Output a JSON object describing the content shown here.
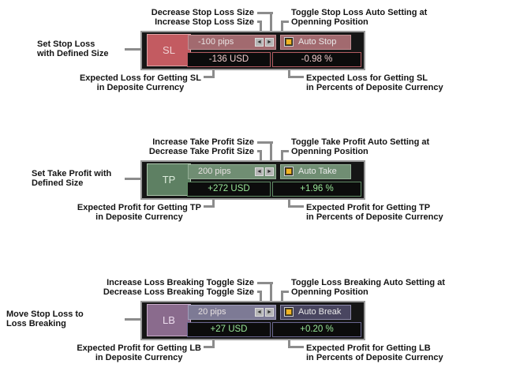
{
  "styles": {
    "connector_color": "#8c8c8c",
    "annotation_text_color": "#141414",
    "widget_background": "#161616",
    "widget_frame": "#9a9a9a",
    "checkbox_fill_color": "#f1b425",
    "arrow_button_color": "#b6b6b6",
    "icons": {
      "decrease_arrow": "◄",
      "increase_arrow": "►"
    }
  },
  "sections": [
    {
      "id": "SL",
      "accent_color": "#c35b61",
      "annotations": {
        "spinner_line1": "Decrease Stop Loss Size",
        "spinner_line2": "Increase Stop Loss Size",
        "toggle_line1": "Toggle Stop Loss Auto Setting at",
        "toggle_line2": "Openning Position",
        "left_line1": "Set Stop Loss",
        "left_line2": "with Defined Size",
        "bottom_left_line1": "Expected Loss for Getting SL",
        "bottom_left_line2": "in Deposite Currency",
        "bottom_right_line1": "Expected Loss for Getting SL",
        "bottom_right_line2": "in Percents of Deposite Currency"
      },
      "widget": {
        "button": "SL",
        "pips": "-100 pips",
        "auto_label": "Auto Stop",
        "auto_checked": true,
        "usd_value": "-136 USD",
        "percent_value": "-0.98 %"
      }
    },
    {
      "id": "TP",
      "accent_color": "#5e8063",
      "annotations": {
        "spinner_line1": "Increase Take Profit Size",
        "spinner_line2": "Decrease Take Profit Size",
        "toggle_line1": "Toggle Take Profit Auto Setting at",
        "toggle_line2": "Openning Position",
        "left_line1": "Set Take Profit with",
        "left_line2": "Defined Size",
        "bottom_left_line1": "Expected Profit for Getting TP",
        "bottom_left_line2": "in Deposite Currency",
        "bottom_right_line1": "Expected Profit for Getting TP",
        "bottom_right_line2": "in Percents of Deposite Currency"
      },
      "widget": {
        "button": "TP",
        "pips": "200 pips",
        "auto_label": "Auto Take",
        "auto_checked": true,
        "usd_value": "+272 USD",
        "percent_value": "+1.96 %"
      }
    },
    {
      "id": "LB",
      "accent_color": "#8a6b8d",
      "annotations": {
        "spinner_line1": "Increase Loss Breaking Toggle Size",
        "spinner_line2": "Decrease Loss Breaking Toggle Size",
        "toggle_line1": "Toggle Loss Breaking Auto Setting at",
        "toggle_line2": "Openning Position",
        "left_line1": "Move Stop Loss to",
        "left_line2": "Loss Breaking",
        "bottom_left_line1": "Expected Profit for Getting LB",
        "bottom_left_line2": "in Deposite Currency",
        "bottom_right_line1": "Expected Profit for Getting LB",
        "bottom_right_line2": "in Percents of Deposite Currency"
      },
      "widget": {
        "button": "LB",
        "pips": "20 pips",
        "auto_label": "Auto Break",
        "auto_checked": true,
        "usd_value": "+27 USD",
        "percent_value": "+0.20 %"
      }
    }
  ]
}
